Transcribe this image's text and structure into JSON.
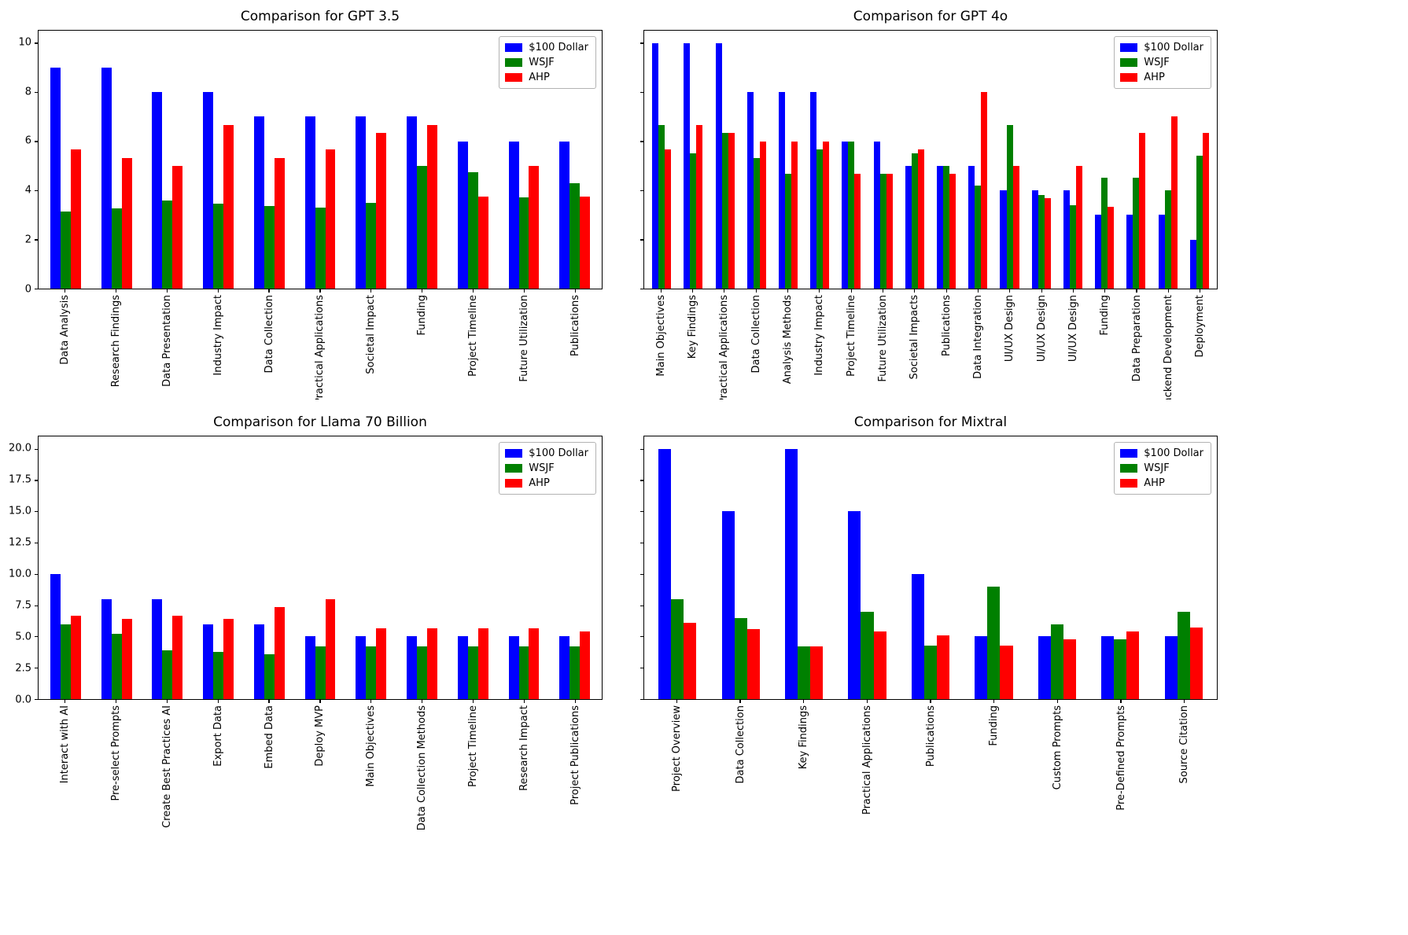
{
  "legend": {
    "entries": [
      {
        "label": "$100 Dollar",
        "color": "#0000ff"
      },
      {
        "label": "WSJF",
        "color": "#008000"
      },
      {
        "label": "AHP",
        "color": "#ff0000"
      }
    ]
  },
  "chart_data": [
    {
      "type": "bar",
      "title": "Comparison for GPT 3.5",
      "ylim": [
        0,
        10.5
      ],
      "yticks": [
        0,
        2,
        4,
        6,
        8,
        10
      ],
      "ytick_labels": [
        "0",
        "2",
        "4",
        "6",
        "8",
        "10"
      ],
      "show_ytick_labels": true,
      "legend_position": "upper right",
      "grid": false,
      "categories": [
        "Data Analysis",
        "Research Findings",
        "Data Presentation",
        "Industry Impact",
        "Data Collection",
        "Practical Applications",
        "Societal Impact",
        "Funding",
        "Project Timeline",
        "Future Utilization",
        "Publications"
      ],
      "series": [
        {
          "name": "$100 Dollar",
          "color": "#0000ff",
          "values": [
            9,
            9,
            8,
            8,
            7,
            7,
            7,
            7,
            6,
            6,
            6
          ]
        },
        {
          "name": "WSJF",
          "color": "#008000",
          "values": [
            3.15,
            3.25,
            3.6,
            3.45,
            3.35,
            3.3,
            3.5,
            5.0,
            4.75,
            3.7,
            4.3
          ]
        },
        {
          "name": "AHP",
          "color": "#ff0000",
          "values": [
            5.67,
            5.33,
            5.0,
            6.67,
            5.33,
            5.67,
            6.33,
            6.67,
            3.75,
            5.0,
            3.75
          ]
        }
      ]
    },
    {
      "type": "bar",
      "title": "Comparison for GPT 4o",
      "ylim": [
        0,
        10.5
      ],
      "yticks": [
        0,
        2,
        4,
        6,
        8,
        10
      ],
      "ytick_labels": [
        "0",
        "2",
        "4",
        "6",
        "8",
        "10"
      ],
      "show_ytick_labels": false,
      "legend_position": "upper right",
      "grid": false,
      "categories": [
        "Main Objectives",
        "Key Findings",
        "Practical Applications",
        "Data Collection",
        "Analysis Methods",
        "Industry Impact",
        "Project Timeline",
        "Future Utilization",
        "Societal Impacts",
        "Publications",
        "Data Integration",
        "UI/UX Design",
        "UI/UX Design",
        "UI/UX Design",
        "Funding",
        "Data Preparation",
        "Backend Development",
        "Deployment"
      ],
      "series": [
        {
          "name": "$100 Dollar",
          "color": "#0000ff",
          "values": [
            10,
            10,
            10,
            8,
            8,
            8,
            6,
            6,
            5,
            5,
            5,
            4,
            4,
            4,
            3,
            3,
            3,
            2
          ]
        },
        {
          "name": "WSJF",
          "color": "#008000",
          "values": [
            6.67,
            5.5,
            6.33,
            5.33,
            4.67,
            5.67,
            6.0,
            4.67,
            5.5,
            5.0,
            4.2,
            6.67,
            3.8,
            3.4,
            4.5,
            4.5,
            4.0,
            5.4
          ]
        },
        {
          "name": "AHP",
          "color": "#ff0000",
          "values": [
            5.67,
            6.67,
            6.33,
            6.0,
            6.0,
            6.0,
            4.67,
            4.67,
            5.67,
            4.67,
            8.0,
            5.0,
            3.67,
            5.0,
            3.33,
            6.33,
            7.0,
            6.33
          ]
        }
      ]
    },
    {
      "type": "bar",
      "title": "Comparison for Llama 70 Billion",
      "ylim": [
        0,
        21
      ],
      "yticks": [
        0,
        2.5,
        5,
        7.5,
        10,
        12.5,
        15,
        17.5,
        20
      ],
      "ytick_labels": [
        "0.0",
        "2.5",
        "5.0",
        "7.5",
        "10.0",
        "12.5",
        "15.0",
        "17.5",
        "20.0"
      ],
      "show_ytick_labels": true,
      "legend_position": "upper right",
      "grid": false,
      "categories": [
        "Interact with AI",
        "Pre-select Prompts",
        "Create Best Practices AI",
        "Export Data",
        "Embed Data",
        "Deploy MVP",
        "Main Objectives",
        "Data Collection Methods",
        "Project Timeline",
        "Research Impact",
        "Project Publications"
      ],
      "series": [
        {
          "name": "$100 Dollar",
          "color": "#0000ff",
          "values": [
            10,
            8,
            8,
            6,
            6,
            5,
            5,
            5,
            5,
            5,
            5
          ]
        },
        {
          "name": "WSJF",
          "color": "#008000",
          "values": [
            6.0,
            5.2,
            3.9,
            3.8,
            3.6,
            4.2,
            4.2,
            4.2,
            4.2,
            4.2,
            4.2
          ]
        },
        {
          "name": "AHP",
          "color": "#ff0000",
          "values": [
            6.67,
            6.4,
            6.67,
            6.4,
            7.33,
            8.0,
            5.67,
            5.67,
            5.67,
            5.67,
            5.4
          ]
        }
      ]
    },
    {
      "type": "bar",
      "title": "Comparison for Mixtral",
      "ylim": [
        0,
        21
      ],
      "yticks": [
        0,
        2.5,
        5,
        7.5,
        10,
        12.5,
        15,
        17.5,
        20
      ],
      "ytick_labels": [
        "0.0",
        "2.5",
        "5.0",
        "7.5",
        "10.0",
        "12.5",
        "15.0",
        "17.5",
        "20.0"
      ],
      "show_ytick_labels": false,
      "legend_position": "upper right",
      "grid": false,
      "categories": [
        "Project Overview",
        "Data Collection",
        "Key Findings",
        "Practical Applications",
        "Publications",
        "Funding",
        "Custom Prompts",
        "Pre-Defined Prompts",
        "Source Citation"
      ],
      "series": [
        {
          "name": "$100 Dollar",
          "color": "#0000ff",
          "values": [
            20,
            15,
            20,
            15,
            10,
            5,
            5,
            5,
            5
          ]
        },
        {
          "name": "WSJF",
          "color": "#008000",
          "values": [
            8.0,
            6.5,
            4.2,
            7.0,
            4.3,
            9.0,
            6.0,
            4.8,
            7.0
          ]
        },
        {
          "name": "AHP",
          "color": "#ff0000",
          "values": [
            6.1,
            5.6,
            4.2,
            5.4,
            5.1,
            4.3,
            4.8,
            5.4,
            5.7
          ]
        }
      ]
    }
  ]
}
